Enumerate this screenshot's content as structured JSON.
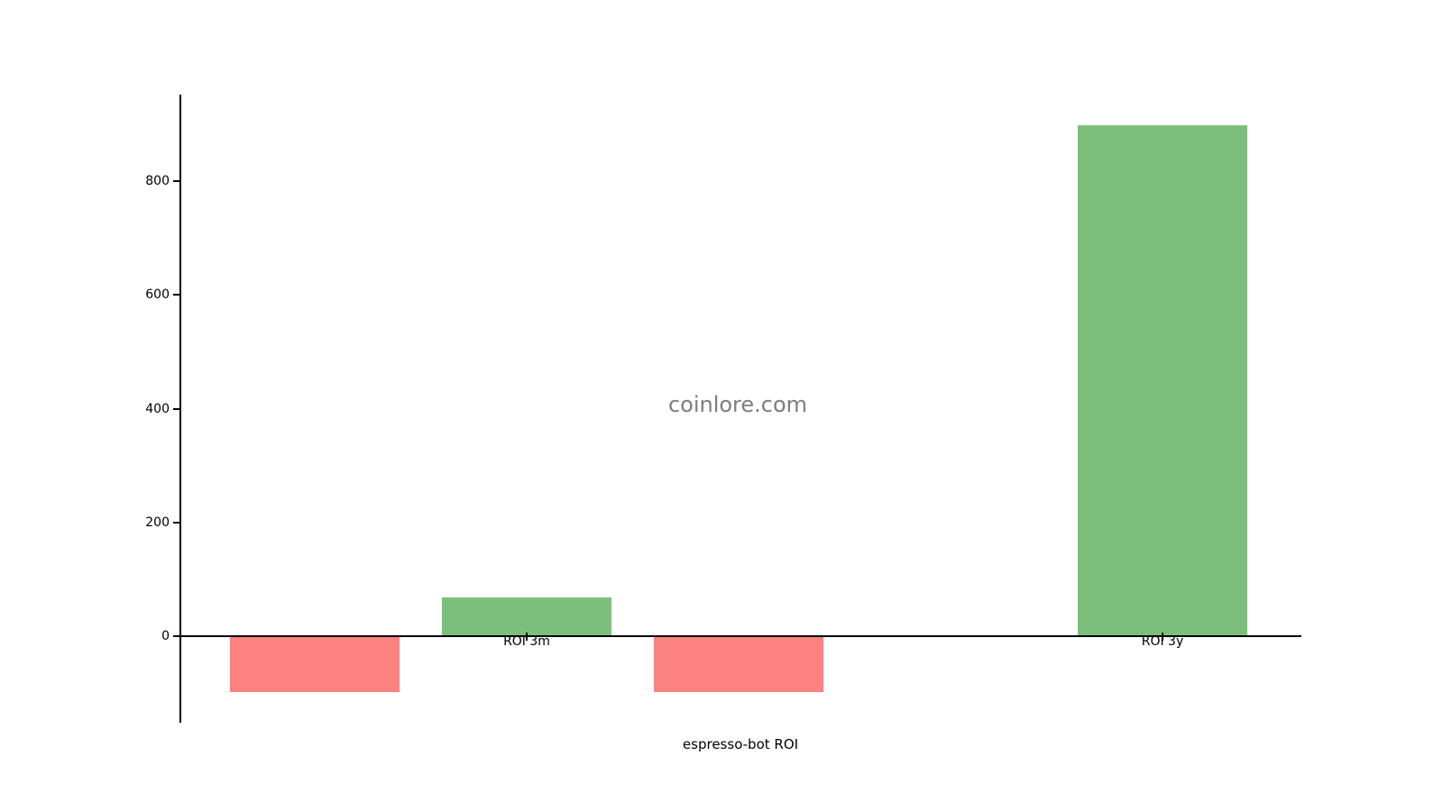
{
  "page": {
    "background_color": "#ffffff"
  },
  "watermark": {
    "text": "coinlore.com",
    "color": "#7d7d7d"
  },
  "chart_data": {
    "type": "bar",
    "title": "",
    "xlabel": "espresso-bot ROI",
    "ylabel": "",
    "categories": [
      "",
      "ROI 3m",
      "",
      "",
      "ROI 3y"
    ],
    "values": [
      -98,
      68,
      -98,
      null,
      898
    ],
    "yticks": [
      0,
      200,
      400,
      600,
      800
    ],
    "ylim": [
      -152,
      952
    ],
    "grid": false,
    "legend": false,
    "positive_color": "#7cbf7c",
    "negative_color": "#fc8181",
    "axis_color": "#000000",
    "tick_label_color": "#000000"
  }
}
